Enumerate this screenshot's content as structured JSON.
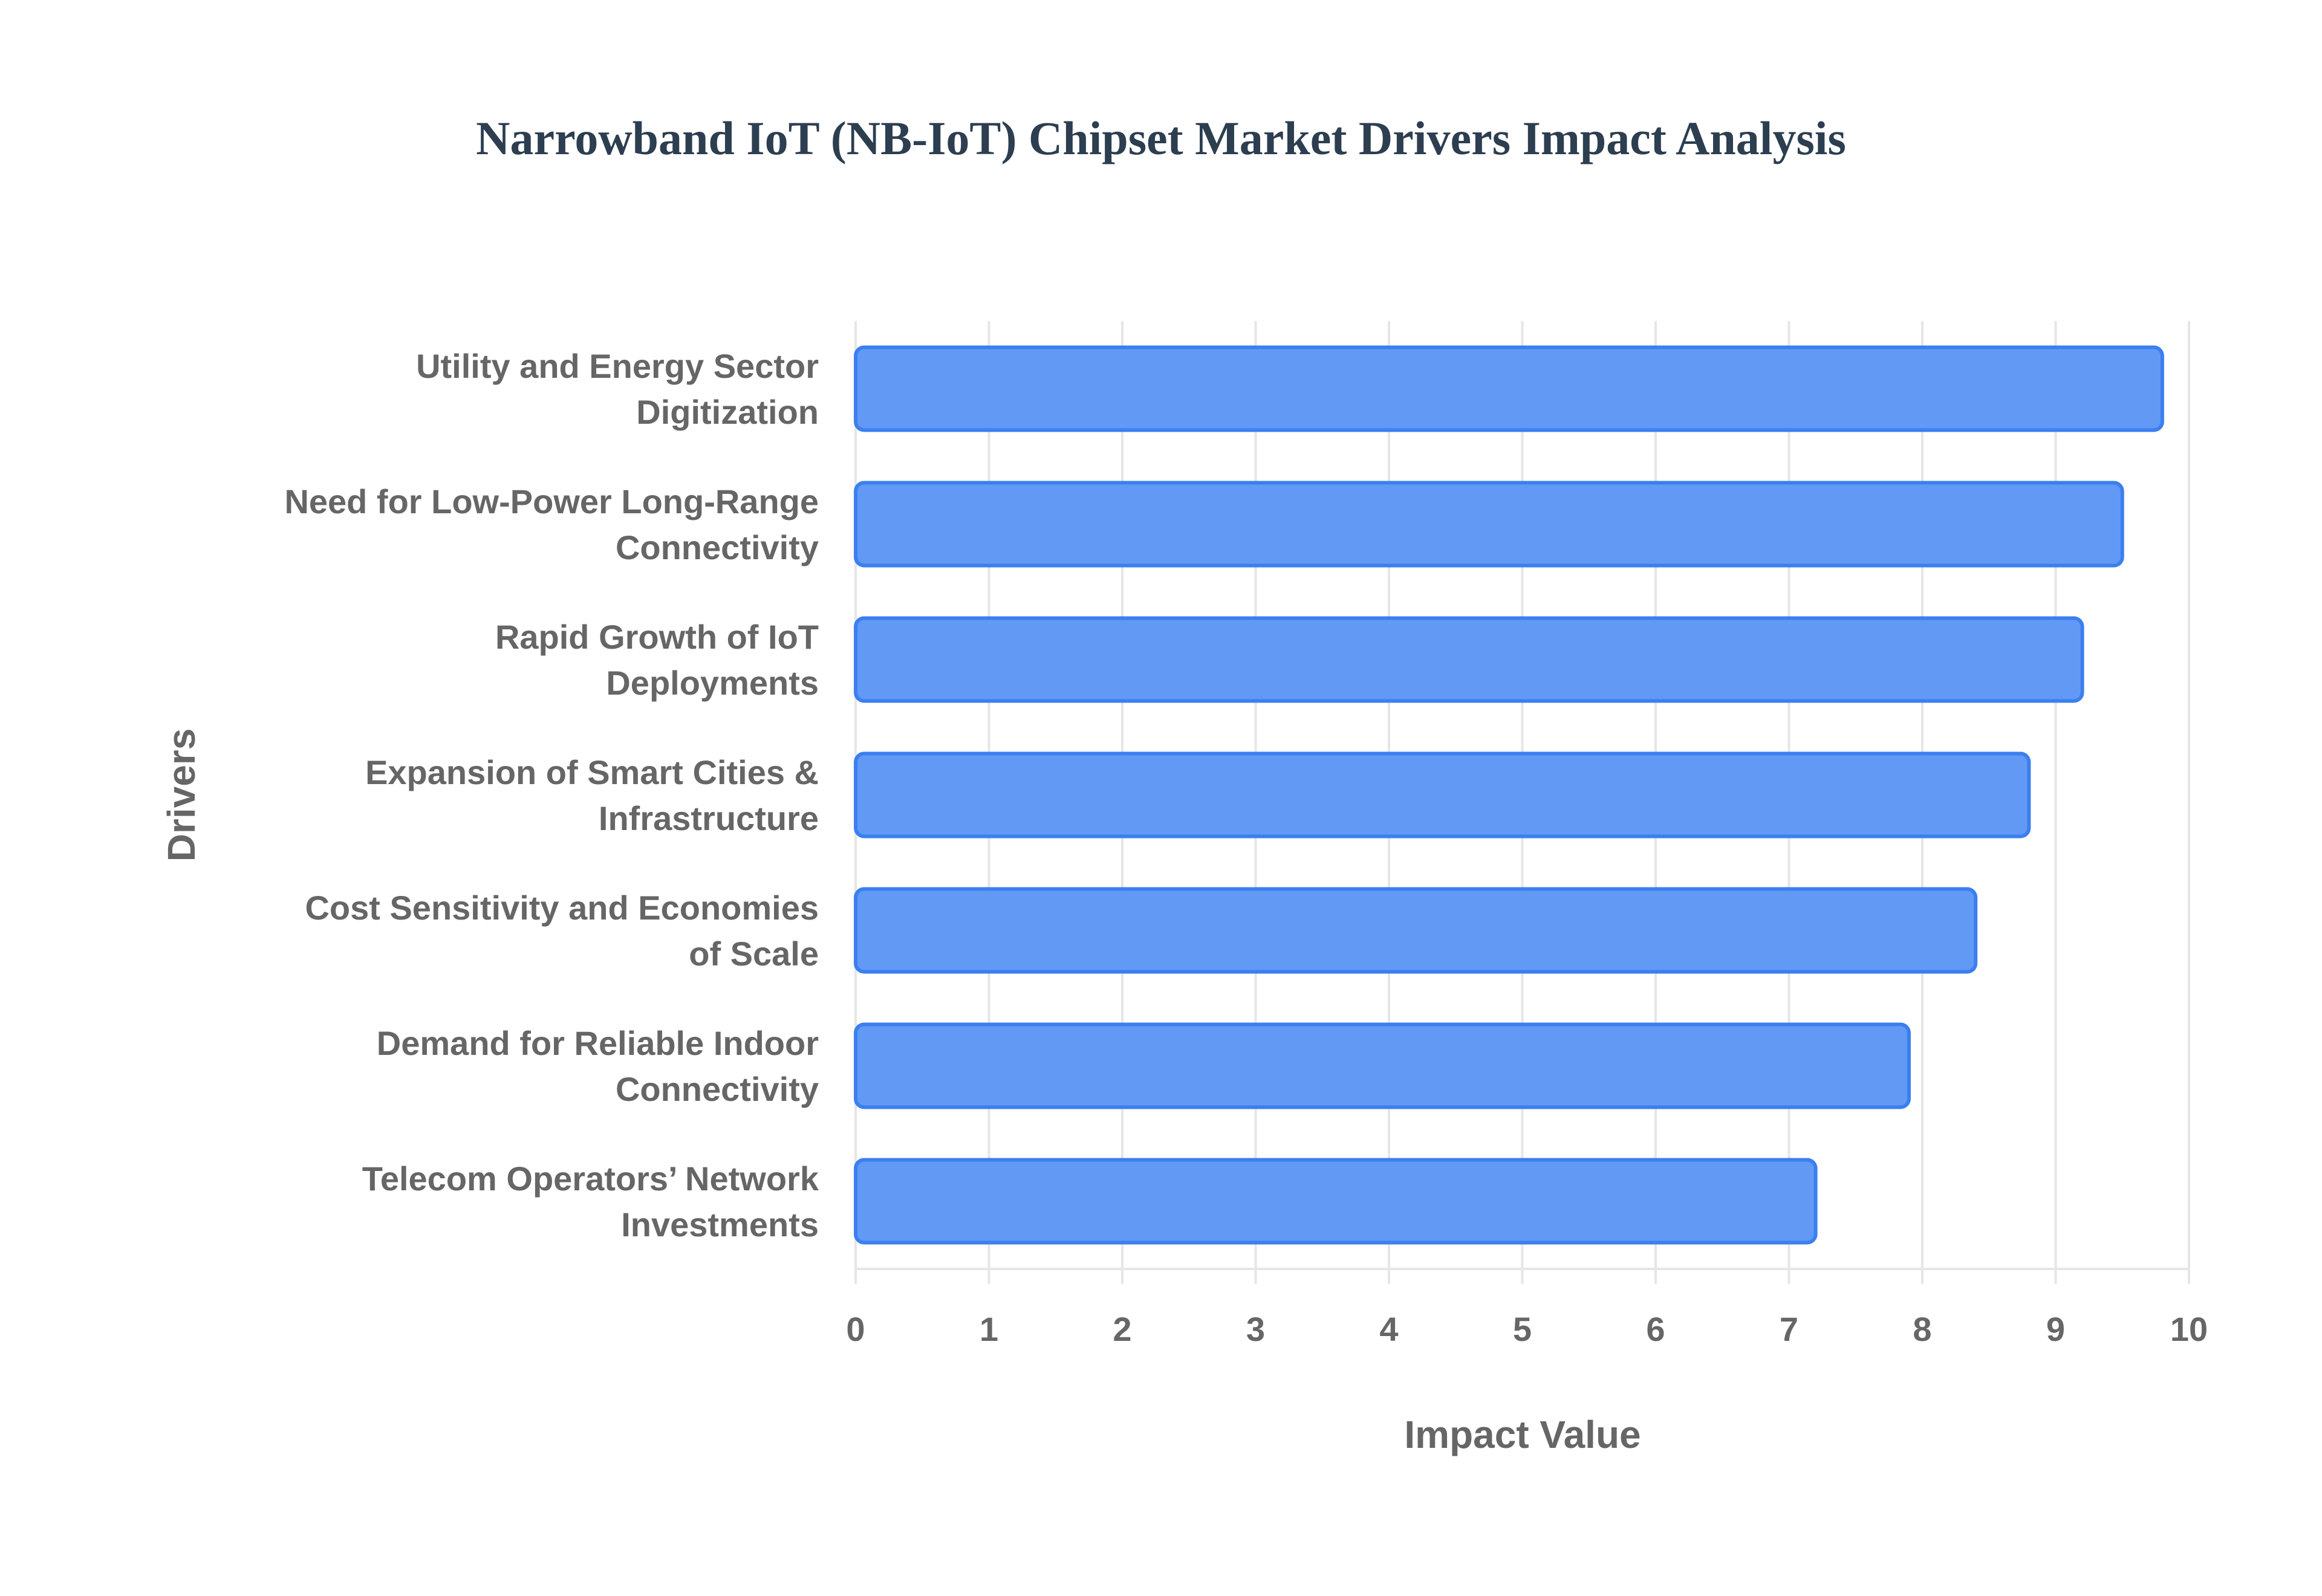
{
  "chart_data": {
    "type": "bar",
    "orientation": "horizontal",
    "title": "Narrowband IoT (NB-IoT) Chipset Market Drivers Impact Analysis",
    "xlabel": "Impact Value",
    "ylabel": "Drivers",
    "xlim": [
      0,
      10
    ],
    "xticks": [
      "0",
      "1",
      "2",
      "3",
      "4",
      "5",
      "6",
      "7",
      "8",
      "9",
      "10"
    ],
    "grid": true,
    "categories": [
      [
        "Utility and Energy Sector",
        "Digitization"
      ],
      [
        "Need for Low-Power Long-Range",
        "Connectivity"
      ],
      [
        "Rapid Growth of IoT",
        "Deployments"
      ],
      [
        "Expansion of Smart Cities &",
        "Infrastructure"
      ],
      [
        "Cost Sensitivity and Economies",
        "of Scale"
      ],
      [
        "Demand for Reliable Indoor",
        "Connectivity"
      ],
      [
        "Telecom Operators’ Network",
        "Investments"
      ]
    ],
    "values": [
      9.8,
      9.5,
      9.2,
      8.8,
      8.4,
      7.9,
      7.2
    ],
    "colors": {
      "bar_fill": "#6199f5",
      "bar_stroke": "#3b7ff0",
      "grid": "#e6e6e6",
      "text": "#666666",
      "title": "#2c3e50"
    }
  }
}
